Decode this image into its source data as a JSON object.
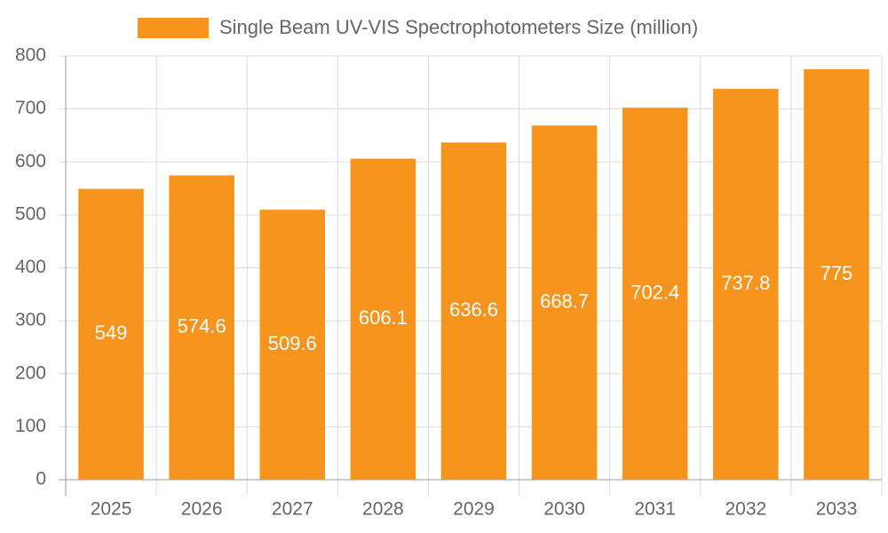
{
  "chart_data": {
    "type": "bar",
    "categories": [
      "2025",
      "2026",
      "2027",
      "2028",
      "2029",
      "2030",
      "2031",
      "2032",
      "2033"
    ],
    "series": [
      {
        "name": "Single Beam UV-VIS Spectrophotometers Size (million)",
        "color": "#f7941d",
        "values": [
          549,
          574.6,
          509.6,
          606.1,
          636.6,
          668.7,
          702.4,
          737.8,
          775
        ]
      }
    ],
    "ylim": [
      0,
      800
    ],
    "yticks": [
      0,
      100,
      200,
      300,
      400,
      500,
      600,
      700,
      800
    ],
    "grid": true
  }
}
